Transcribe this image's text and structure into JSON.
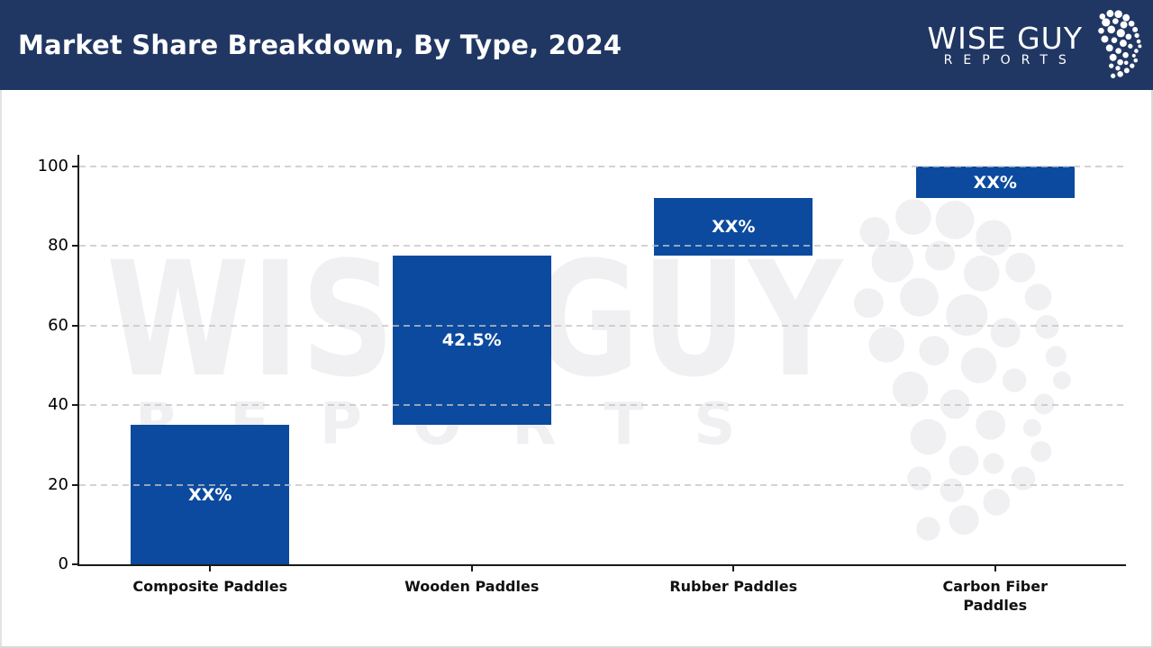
{
  "header": {
    "title": "Market Share Breakdown, By Type, 2024",
    "logo": {
      "wordmark": "WISE GUY",
      "subtext": "REPORTS"
    }
  },
  "watermark": {
    "wordmark": "WISE GUY",
    "subtext": "REPORTS"
  },
  "chart_data": {
    "type": "bar",
    "subtype": "waterfall",
    "title": "Market Share Breakdown, By Type, 2024",
    "categories": [
      "Composite Paddles",
      "Wooden Paddles",
      "Rubber Paddles",
      "Carbon Fiber Paddles"
    ],
    "bars": [
      {
        "category": "Composite Paddles",
        "tick_label": "Composite Paddles",
        "start": 0,
        "end": 35,
        "label": "XX%"
      },
      {
        "category": "Wooden Paddles",
        "tick_label": "Wooden Paddles",
        "start": 35,
        "end": 77.5,
        "label": "42.5%"
      },
      {
        "category": "Rubber Paddles",
        "tick_label": "Rubber Paddles",
        "start": 77.5,
        "end": 92,
        "label": "XX%"
      },
      {
        "category": "Carbon Fiber Paddles",
        "tick_label": "Carbon Fiber\nPaddles",
        "start": 92,
        "end": 100,
        "label": "XX%"
      }
    ],
    "xlabel": "",
    "ylabel": "",
    "ylim": [
      0,
      103
    ],
    "yticks": [
      0,
      20,
      40,
      60,
      80,
      100
    ],
    "grid": "horizontal-dashed",
    "legend": "none",
    "colors": {
      "bar": "#0b4a9e",
      "bar_label": "#ffffff",
      "grid": "#c4c4c4",
      "axis": "#1a1a1a",
      "header_bg": "#213763",
      "watermark": "#f0f0f2"
    }
  }
}
